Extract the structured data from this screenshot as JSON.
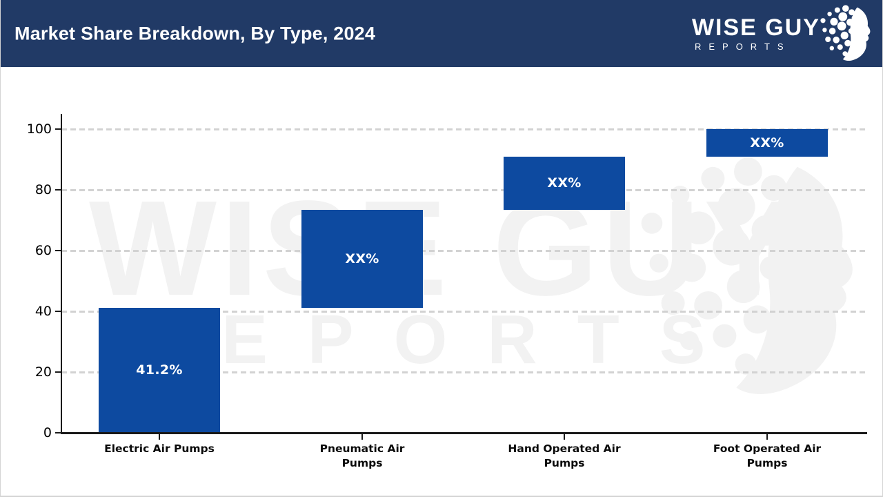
{
  "header": {
    "title": "Market Share Breakdown, By Type, 2024",
    "bg_color": "#213a66"
  },
  "logo": {
    "wordmark": "WISE GUY",
    "subtitle": "REPORTS"
  },
  "watermark": {
    "line1": "WISE GUY",
    "line2": "REPORTS"
  },
  "chart_data": {
    "type": "bar",
    "variant": "waterfall",
    "title": "Market Share Breakdown, By Type, 2024",
    "categories": [
      "Electric Air Pumps",
      "Pneumatic Air Pumps",
      "Hand Operated Air Pumps",
      "Foot Operated Air Pumps"
    ],
    "category_lines": [
      [
        "Electric Air Pumps"
      ],
      [
        "Pneumatic Air",
        "Pumps"
      ],
      [
        "Hand Operated Air",
        "Pumps"
      ],
      [
        "Foot Operated Air",
        "Pumps"
      ]
    ],
    "segments": [
      {
        "category": "Electric Air Pumps",
        "label": "41.2%",
        "start": 0,
        "end": 41.2
      },
      {
        "category": "Pneumatic Air Pumps",
        "label": "XX%",
        "start": 41.2,
        "end": 73.5
      },
      {
        "category": "Hand Operated Air Pumps",
        "label": "XX%",
        "start": 73.5,
        "end": 91
      },
      {
        "category": "Foot Operated Air Pumps",
        "label": "XX%",
        "start": 91,
        "end": 100
      }
    ],
    "yticks": [
      0,
      20,
      40,
      60,
      80,
      100
    ],
    "ylim": [
      0,
      100
    ],
    "xlabel": "",
    "ylabel": "",
    "legend": "none",
    "grid": {
      "horizontal": true,
      "style": "dashed"
    },
    "colors": {
      "bar": "#0d4aa0",
      "bar_value_text": "#ffffff",
      "grid": "#d2d2d2",
      "axis": "#1a1a1a",
      "watermark": "#f2f2f2"
    }
  }
}
